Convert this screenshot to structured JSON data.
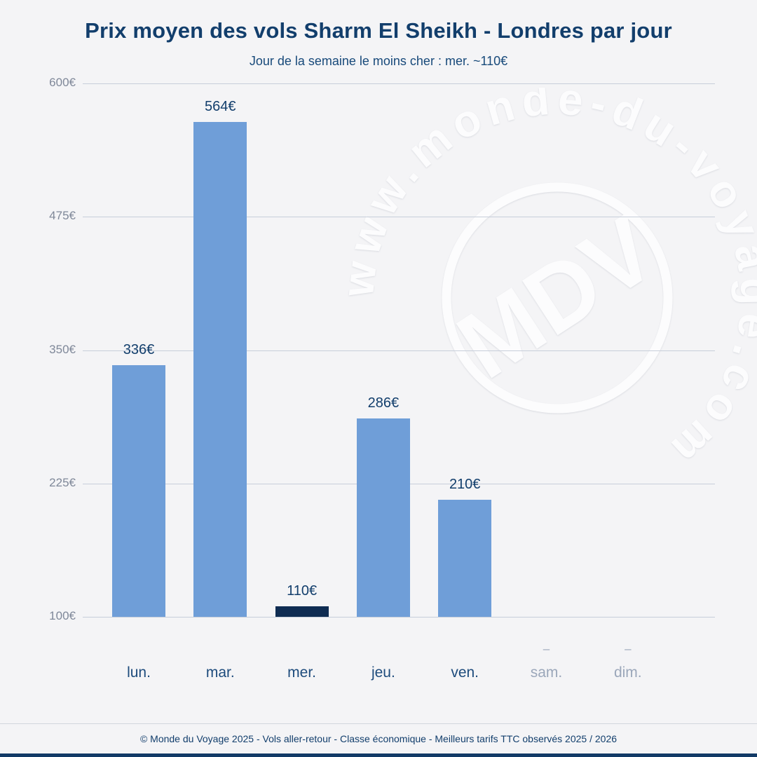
{
  "title": "Prix moyen des vols Sharm El Sheikh - Londres par jour",
  "subtitle": "Jour de la semaine le moins cher : mer. ~110€",
  "watermark": {
    "ring_text": "www.monde-du-voyage.com",
    "center_text": "MDV"
  },
  "footer": {
    "text": "© Monde du Voyage 2025 - Vols aller-retour - Classe économique - Meilleurs tarifs TTC observés 2025 / 2026"
  },
  "colors": {
    "background": "#f4f4f6",
    "bar": "#6f9ed8",
    "bar_highlight": "#0f2c52",
    "title_text": "#123e6c",
    "grid": "#c7ceda",
    "tick_text": "#7f8899",
    "day_text": "#1d4b7c",
    "muted_day": "#9ba7ba",
    "footer_bar": "#123a66"
  },
  "chart_data": {
    "type": "bar",
    "title": "Prix moyen des vols Sharm El Sheikh - Londres par jour",
    "subtitle": "Jour de la semaine le moins cher : mer. ~110€",
    "categories": [
      "lun.",
      "mar.",
      "mer.",
      "jeu.",
      "ven.",
      "sam.",
      "dim."
    ],
    "values": [
      336,
      564,
      110,
      286,
      210,
      null,
      null
    ],
    "value_labels": [
      "336€",
      "564€",
      "110€",
      "286€",
      "210€",
      "–",
      "–"
    ],
    "highlight_index": 2,
    "xlabel": "",
    "ylabel": "",
    "ylim": [
      100,
      600
    ],
    "y_ticks": [
      600,
      475,
      350,
      225,
      100
    ],
    "y_tick_labels": [
      "600€",
      "475€",
      "350€",
      "225€",
      "100€"
    ],
    "grid": true,
    "legend": false
  }
}
